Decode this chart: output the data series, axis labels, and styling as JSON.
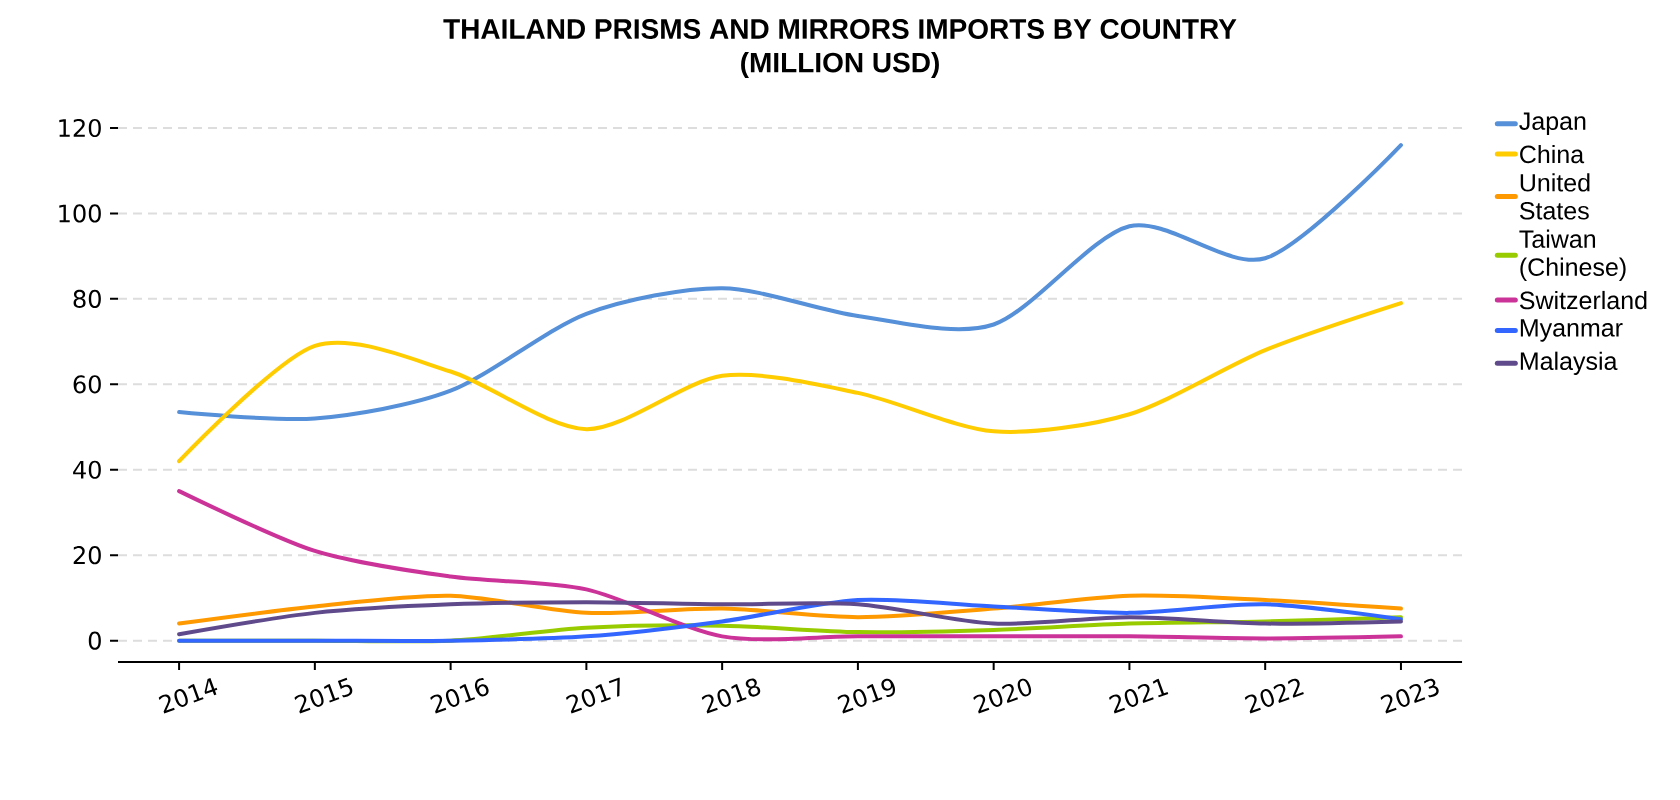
{
  "chart_data": {
    "type": "line",
    "title": "THAILAND PRISMS AND MIRRORS IMPORTS BY COUNTRY",
    "subtitle": "(MILLION USD)",
    "x": [
      2014,
      2015,
      2016,
      2017,
      2018,
      2019,
      2020,
      2021,
      2022,
      2023
    ],
    "xlim": [
      2013.55,
      2023.45
    ],
    "xticks": [
      2014,
      2015,
      2016,
      2017,
      2018,
      2019,
      2020,
      2021,
      2022,
      2023
    ],
    "ylim": [
      -5,
      120
    ],
    "yticks": [
      0,
      20,
      40,
      60,
      80,
      100,
      120
    ],
    "grid": "y",
    "legend": "right",
    "series": [
      {
        "name": "Japan",
        "color": "#5590d8",
        "values": [
          53.5,
          52,
          58.5,
          76.5,
          82.5,
          76,
          74,
          97,
          89.5,
          116
        ]
      },
      {
        "name": "China",
        "color": "#ffcc00",
        "values": [
          42,
          69,
          63,
          49.5,
          62,
          58,
          49,
          53,
          68,
          79
        ]
      },
      {
        "name": "United States",
        "color": "#ff9900",
        "values": [
          4,
          8,
          10.5,
          6.5,
          7.5,
          5.5,
          7.5,
          10.5,
          9.5,
          7.5
        ]
      },
      {
        "name": "Taiwan (Chinese)",
        "color": "#99cc00",
        "values": [
          0,
          0,
          0,
          3,
          3.5,
          2,
          2.5,
          4,
          4.5,
          5.5
        ]
      },
      {
        "name": "Switzerland",
        "color": "#cc3399",
        "values": [
          35,
          21,
          15,
          12,
          1,
          1,
          1,
          1,
          0.5,
          1
        ]
      },
      {
        "name": "Myanmar",
        "color": "#3366ff",
        "values": [
          0,
          0,
          0,
          1,
          4.5,
          9.5,
          8,
          6.5,
          8.5,
          5
        ]
      },
      {
        "name": "Malaysia",
        "color": "#5f4b8b",
        "values": [
          1.5,
          6.5,
          8.5,
          9,
          8.5,
          8.5,
          4,
          5.5,
          4,
          4.5
        ]
      }
    ]
  }
}
